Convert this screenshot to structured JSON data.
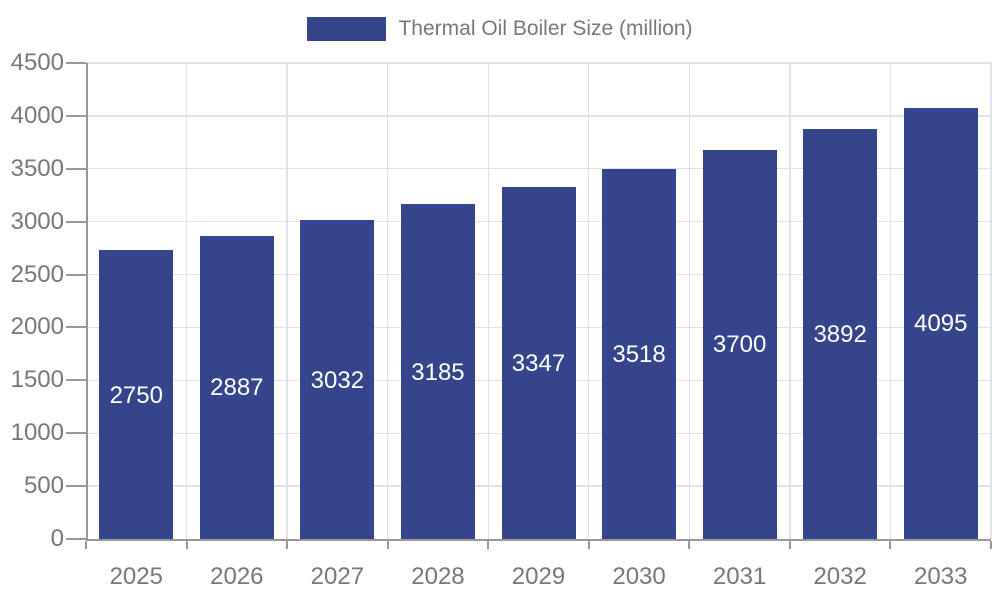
{
  "chart_data": {
    "type": "bar",
    "title": "",
    "legend_label": "Thermal Oil Boiler Size (million)",
    "legend_position": "top",
    "categories": [
      "2025",
      "2026",
      "2027",
      "2028",
      "2029",
      "2030",
      "2031",
      "2032",
      "2033"
    ],
    "series": [
      {
        "name": "Thermal Oil Boiler Size (million)",
        "values": [
          2750,
          2887,
          3032,
          3185,
          3347,
          3518,
          3700,
          3892,
          4095
        ]
      }
    ],
    "xlabel": "",
    "ylabel": "",
    "ylim": [
      0,
      4500
    ],
    "yticks": [
      0,
      500,
      1000,
      1500,
      2000,
      2500,
      3000,
      3500,
      4000,
      4500
    ],
    "grid": true,
    "value_labels": "inside-center",
    "colors": {
      "bar": "#36458B",
      "bar_label_text": "#FFFFFF",
      "axis_line": "#999999",
      "tick": "#999999",
      "grid_line": "#E2E2E6",
      "axis_text": "#76787B",
      "legend_text": "#76787B",
      "background": "#FFFFFF"
    }
  }
}
